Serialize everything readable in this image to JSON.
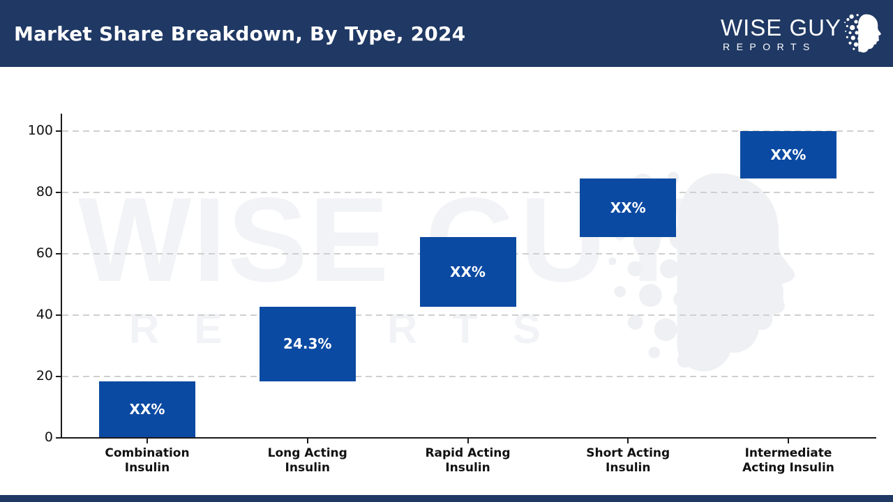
{
  "header": {
    "title": "Market Share Breakdown, By Type, 2024",
    "logo": {
      "brand": "WISE GUY",
      "sub": "REPORTS"
    }
  },
  "watermark": {
    "brand": "WISE GUY",
    "sub": "REPORTS"
  },
  "footer": {},
  "colors": {
    "header_bg": "#1f3864",
    "footer_bg": "#1f3864",
    "bar": "#0b4aa2",
    "bar_label": "#ffffff",
    "grid": "#cfcfcf",
    "axis": "#1a1a1a",
    "watermark": "#f2f3f6"
  },
  "chart_data": {
    "type": "bar",
    "variant": "floating-waterfall",
    "title": "Market Share Breakdown, By Type, 2024",
    "xlabel": "",
    "ylabel": "",
    "ylim": [
      0,
      100
    ],
    "yticks": [
      0,
      20,
      40,
      60,
      80,
      100
    ],
    "grid": {
      "axis": "y",
      "style": "dashed"
    },
    "legend": null,
    "categories": [
      "Combination Insulin",
      "Long Acting Insulin",
      "Rapid Acting Insulin",
      "Short Acting Insulin",
      "Intermediate Acting Insulin"
    ],
    "category_lines": [
      [
        "Combination",
        "Insulin"
      ],
      [
        "Long Acting",
        "Insulin"
      ],
      [
        "Rapid Acting",
        "Insulin"
      ],
      [
        "Short Acting",
        "Insulin"
      ],
      [
        "Intermediate",
        "Acting Insulin"
      ]
    ],
    "bars": [
      {
        "category": "Combination Insulin",
        "start": 0,
        "end": 18.4,
        "label": "XX%"
      },
      {
        "category": "Long Acting Insulin",
        "start": 18.4,
        "end": 42.7,
        "label": "24.3%"
      },
      {
        "category": "Rapid Acting Insulin",
        "start": 42.7,
        "end": 65.3,
        "label": "XX%"
      },
      {
        "category": "Short Acting Insulin",
        "start": 65.3,
        "end": 84.5,
        "label": "XX%"
      },
      {
        "category": "Intermediate Acting Insulin",
        "start": 84.5,
        "end": 100,
        "label": "XX%"
      }
    ]
  }
}
